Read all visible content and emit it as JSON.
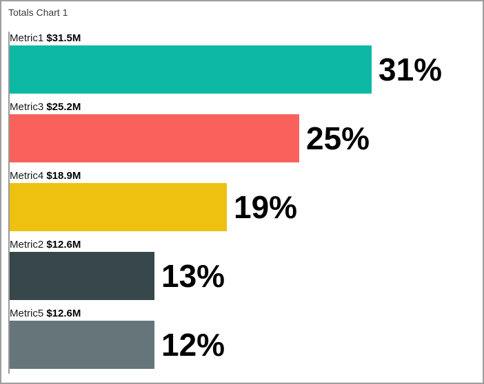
{
  "title": "Totals Chart 1",
  "chart_data": {
    "type": "bar",
    "orientation": "horizontal",
    "title": "Totals Chart 1",
    "value_unit": "$M",
    "axis_color": "#9a9a9a",
    "max_value": 31.5,
    "bars": [
      {
        "name": "Metric1",
        "value": 31.5,
        "value_label": "$31.5M",
        "percent": "31%",
        "color": "#0db8a4"
      },
      {
        "name": "Metric3",
        "value": 25.2,
        "value_label": "$25.2M",
        "percent": "25%",
        "color": "#f9625c"
      },
      {
        "name": "Metric4",
        "value": 18.9,
        "value_label": "$18.9M",
        "percent": "19%",
        "color": "#eec110"
      },
      {
        "name": "Metric2",
        "value": 12.6,
        "value_label": "$12.6M",
        "percent": "13%",
        "color": "#37474c"
      },
      {
        "name": "Metric5",
        "value": 12.6,
        "value_label": "$12.6M",
        "percent": "12%",
        "color": "#66757a"
      }
    ]
  }
}
